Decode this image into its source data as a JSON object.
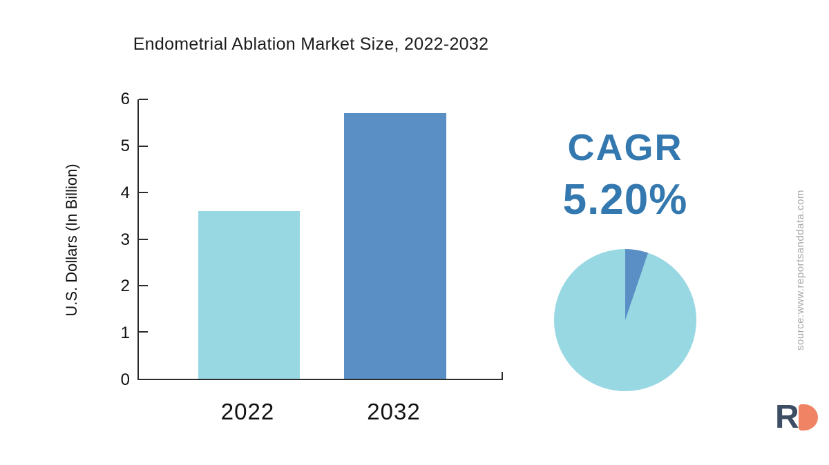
{
  "title": "Endometrial Ablation Market Size, 2022-2032",
  "cagr": {
    "label": "CAGR",
    "value": "5.20%"
  },
  "source": {
    "text": "source:www.reportsanddata.com"
  },
  "logo": {
    "letter": "R"
  },
  "colors": {
    "light_blue": "#98d8e3",
    "dark_blue": "#5a8fc5",
    "cagr_text": "#3478b0",
    "axis": "#2b2b2b",
    "source_gray": "#a9a9a9",
    "logo_navy": "#3d4d63",
    "logo_orange": "#ef8364"
  },
  "chart_data": [
    {
      "type": "bar",
      "title": "Endometrial Ablation Market Size, 2022-2032",
      "categories": [
        "2022",
        "2032"
      ],
      "values": [
        3.6,
        5.7
      ],
      "colors": [
        "#98d8e3",
        "#5a8fc5"
      ],
      "xlabel": "",
      "ylabel": "U.S. Dollars (In Billion)",
      "ylim": [
        0,
        6
      ],
      "yticks": [
        "0",
        "1",
        "2",
        "3",
        "4",
        "5",
        "6"
      ],
      "grid": false,
      "legend": "none"
    },
    {
      "type": "pie",
      "label": "CAGR 5.20%",
      "values": [
        5.2,
        94.8
      ],
      "colors": [
        "#5a8fc5",
        "#98d8e3"
      ],
      "start_angle_deg": 0,
      "direction": "clockwise",
      "legend": "none"
    }
  ]
}
